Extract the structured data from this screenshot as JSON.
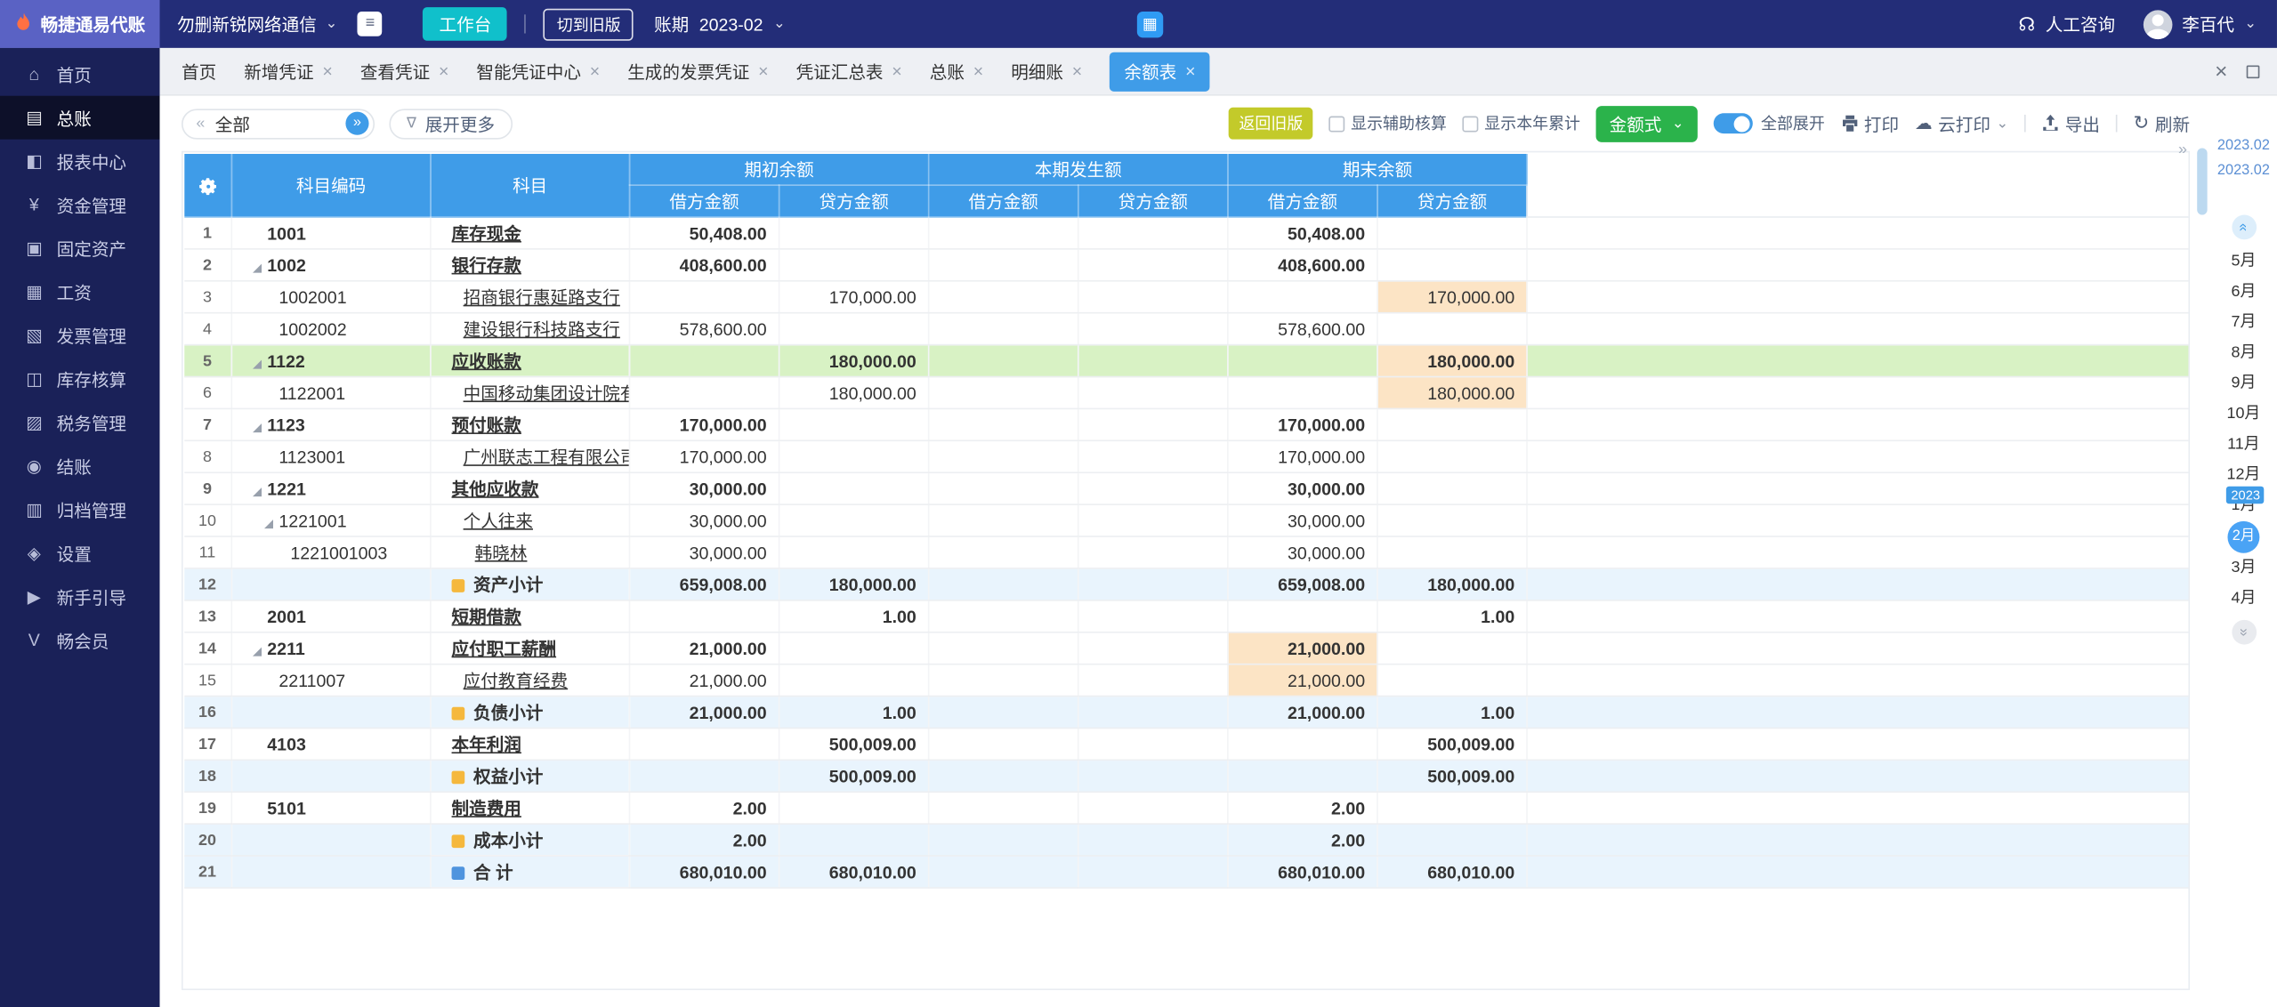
{
  "topbar": {
    "logo_text": "畅捷通易代账",
    "company": "勿删新锐网络通信",
    "workbench_btn": "工作台",
    "switch_old_btn": "切到旧版",
    "period_label": "账期",
    "period_value": "2023-02",
    "support": "人工咨询",
    "username": "李百代"
  },
  "sidebar": {
    "items": [
      {
        "id": "home",
        "glyph": "⌂",
        "label": "首页"
      },
      {
        "id": "general-ledger",
        "glyph": "▤",
        "label": "总账",
        "active": true
      },
      {
        "id": "report-center",
        "glyph": "◧",
        "label": "报表中心"
      },
      {
        "id": "fund-management",
        "glyph": "¥",
        "label": "资金管理"
      },
      {
        "id": "fixed-assets",
        "glyph": "▣",
        "label": "固定资产"
      },
      {
        "id": "payroll",
        "glyph": "▦",
        "label": "工资"
      },
      {
        "id": "invoice-management",
        "glyph": "▧",
        "label": "发票管理"
      },
      {
        "id": "inventory-accounting",
        "glyph": "◫",
        "label": "库存核算"
      },
      {
        "id": "tax-management",
        "glyph": "▨",
        "label": "税务管理"
      },
      {
        "id": "closing",
        "glyph": "◉",
        "label": "结账"
      },
      {
        "id": "archive-management",
        "glyph": "▥",
        "label": "归档管理"
      },
      {
        "id": "settings",
        "glyph": "◈",
        "label": "设置"
      },
      {
        "id": "beginner-guide",
        "glyph": "▶",
        "label": "新手引导"
      },
      {
        "id": "member",
        "glyph": "V",
        "label": "畅会员"
      }
    ]
  },
  "tabs": {
    "items": [
      {
        "id": "home",
        "label": "首页",
        "closable": false
      },
      {
        "id": "new-voucher",
        "label": "新增凭证",
        "closable": true
      },
      {
        "id": "view-voucher",
        "label": "查看凭证",
        "closable": true
      },
      {
        "id": "smart-voucher-center",
        "label": "智能凭证中心",
        "closable": true
      },
      {
        "id": "generated-invoice-voucher",
        "label": "生成的发票凭证",
        "closable": true
      },
      {
        "id": "voucher-summary",
        "label": "凭证汇总表",
        "closable": true
      },
      {
        "id": "general-ledger",
        "label": "总账",
        "closable": true
      },
      {
        "id": "detail-ledger",
        "label": "明细账",
        "closable": true
      },
      {
        "id": "balance-sheet",
        "label": "余额表",
        "closable": true,
        "active": true
      }
    ]
  },
  "toolbar": {
    "scope_value": "全部",
    "expand_more": "展开更多",
    "back_old": "返回旧版",
    "checkbox_aux": "显示辅助核算",
    "checkbox_ytd": "显示本年累计",
    "format_btn": "金额式",
    "toggle_label": "全部展开",
    "print": "打印",
    "cloud_print": "云打印",
    "export": "导出",
    "refresh": "刷新"
  },
  "table": {
    "header": {
      "code": "科目编码",
      "subject": "科目",
      "groups": [
        "期初余额",
        "本期发生额",
        "期末余额"
      ],
      "debit": "借方金额",
      "credit": "贷方金额"
    },
    "rows": [
      {
        "n": "1",
        "code": "1001",
        "lvl": 0,
        "exp": false,
        "type": "account",
        "name": "库存现金",
        "bold": true,
        "v": [
          "50,408.00",
          "",
          "",
          "",
          "50,408.00",
          ""
        ],
        "orange": []
      },
      {
        "n": "2",
        "code": "1002",
        "lvl": 0,
        "exp": true,
        "type": "account",
        "name": "银行存款",
        "bold": true,
        "v": [
          "408,600.00",
          "",
          "",
          "",
          "408,600.00",
          ""
        ],
        "orange": []
      },
      {
        "n": "3",
        "code": "1002001",
        "lvl": 1,
        "exp": false,
        "type": "account",
        "name": "招商银行惠延路支行",
        "bold": false,
        "v": [
          "",
          "170,000.00",
          "",
          "",
          "",
          "170,000.00"
        ],
        "orange": [
          5
        ]
      },
      {
        "n": "4",
        "code": "1002002",
        "lvl": 1,
        "exp": false,
        "type": "account",
        "name": "建设银行科技路支行",
        "bold": false,
        "v": [
          "578,600.00",
          "",
          "",
          "",
          "578,600.00",
          ""
        ],
        "orange": []
      },
      {
        "n": "5",
        "code": "1122",
        "lvl": 0,
        "exp": true,
        "type": "account",
        "name": "应收账款",
        "bold": true,
        "selected": true,
        "v": [
          "",
          "180,000.00",
          "",
          "",
          "",
          "180,000.00"
        ],
        "orange": [
          5
        ]
      },
      {
        "n": "6",
        "code": "1122001",
        "lvl": 1,
        "exp": false,
        "type": "account",
        "name": "中国移动集团设计院有限公司刘",
        "bold": false,
        "v": [
          "",
          "180,000.00",
          "",
          "",
          "",
          "180,000.00"
        ],
        "orange": [
          5
        ]
      },
      {
        "n": "7",
        "code": "1123",
        "lvl": 0,
        "exp": true,
        "type": "account",
        "name": "预付账款",
        "bold": true,
        "v": [
          "170,000.00",
          "",
          "",
          "",
          "170,000.00",
          ""
        ],
        "orange": []
      },
      {
        "n": "8",
        "code": "1123001",
        "lvl": 1,
        "exp": false,
        "type": "account",
        "name": "广州联志工程有限公司",
        "bold": false,
        "v": [
          "170,000.00",
          "",
          "",
          "",
          "170,000.00",
          ""
        ],
        "orange": []
      },
      {
        "n": "9",
        "code": "1221",
        "lvl": 0,
        "exp": true,
        "type": "account",
        "name": "其他应收款",
        "bold": true,
        "v": [
          "30,000.00",
          "",
          "",
          "",
          "30,000.00",
          ""
        ],
        "orange": []
      },
      {
        "n": "10",
        "code": "1221001",
        "lvl": 1,
        "exp": true,
        "type": "account",
        "name": "个人往来",
        "bold": false,
        "v": [
          "30,000.00",
          "",
          "",
          "",
          "30,000.00",
          ""
        ],
        "orange": []
      },
      {
        "n": "11",
        "code": "1221001003",
        "lvl": 2,
        "exp": false,
        "type": "account",
        "name": "韩晓林",
        "bold": false,
        "v": [
          "30,000.00",
          "",
          "",
          "",
          "30,000.00",
          ""
        ],
        "orange": []
      },
      {
        "n": "12",
        "code": "",
        "type": "subtotal",
        "name": "资产小计",
        "bold": true,
        "v": [
          "659,008.00",
          "180,000.00",
          "",
          "",
          "659,008.00",
          "180,000.00"
        ],
        "orange": []
      },
      {
        "n": "13",
        "code": "2001",
        "lvl": 0,
        "exp": false,
        "type": "account",
        "name": "短期借款",
        "bold": true,
        "v": [
          "",
          "1.00",
          "",
          "",
          "",
          "1.00"
        ],
        "orange": []
      },
      {
        "n": "14",
        "code": "2211",
        "lvl": 0,
        "exp": true,
        "type": "account",
        "name": "应付职工薪酬",
        "bold": true,
        "v": [
          "21,000.00",
          "",
          "",
          "",
          "21,000.00",
          ""
        ],
        "orange": [
          4
        ]
      },
      {
        "n": "15",
        "code": "2211007",
        "lvl": 1,
        "exp": false,
        "type": "account",
        "name": "应付教育经费",
        "bold": false,
        "v": [
          "21,000.00",
          "",
          "",
          "",
          "21,000.00",
          ""
        ],
        "orange": [
          4
        ]
      },
      {
        "n": "16",
        "code": "",
        "type": "subtotal",
        "name": "负债小计",
        "bold": true,
        "v": [
          "21,000.00",
          "1.00",
          "",
          "",
          "21,000.00",
          "1.00"
        ],
        "orange": []
      },
      {
        "n": "17",
        "code": "4103",
        "lvl": 0,
        "exp": false,
        "type": "account",
        "name": "本年利润",
        "bold": true,
        "v": [
          "",
          "500,009.00",
          "",
          "",
          "",
          "500,009.00"
        ],
        "orange": []
      },
      {
        "n": "18",
        "code": "",
        "type": "subtotal",
        "name": "权益小计",
        "bold": true,
        "v": [
          "",
          "500,009.00",
          "",
          "",
          "",
          "500,009.00"
        ],
        "orange": []
      },
      {
        "n": "19",
        "code": "5101",
        "lvl": 0,
        "exp": false,
        "type": "account",
        "name": "制造费用",
        "bold": true,
        "v": [
          "2.00",
          "",
          "",
          "",
          "2.00",
          ""
        ],
        "orange": []
      },
      {
        "n": "20",
        "code": "",
        "type": "subtotal",
        "name": "成本小计",
        "bold": true,
        "v": [
          "2.00",
          "",
          "",
          "",
          "2.00",
          ""
        ],
        "orange": []
      },
      {
        "n": "21",
        "code": "",
        "type": "total",
        "name": "合 计",
        "bold": true,
        "v": [
          "680,010.00",
          "680,010.00",
          "",
          "",
          "680,010.00",
          "680,010.00"
        ],
        "orange": []
      }
    ]
  },
  "timeline": {
    "period_a": "2023.02",
    "period_b": "2023.02",
    "year_badge": "2023",
    "months": [
      "5月",
      "6月",
      "7月",
      "8月",
      "9月",
      "10月",
      "11月",
      "12月",
      "1月",
      "2月",
      "3月",
      "4月"
    ],
    "active_month": "2月"
  },
  "colors": {
    "header_blue": "#3f9ce8",
    "selected_green": "#d8f2c4",
    "abnormal_orange": "#fce4c5",
    "subtotal_blue": "#e9f4fd",
    "accent_green": "#2bb34b",
    "accent_cyan": "#10c0cb",
    "accent_olive": "#c3ca2a",
    "topbar_navy": "#232d78",
    "sidebar_navy": "#1a2158",
    "logo_indigo": "#5a62c4"
  }
}
